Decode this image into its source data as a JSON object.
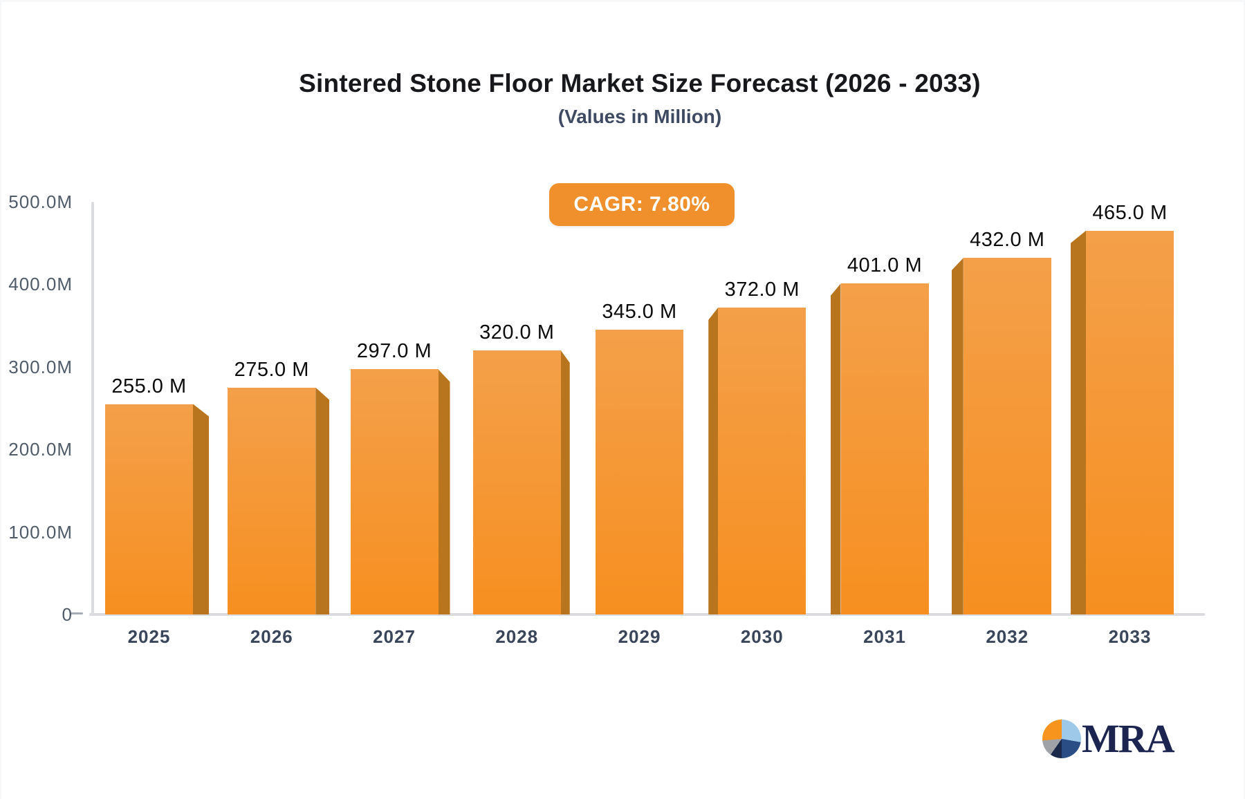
{
  "header": {
    "title": "Sintered Stone Floor Market Size Forecast (2026 - 2033)",
    "subtitle": "(Values in Million)"
  },
  "badge": {
    "label": "CAGR: 7.80%",
    "bg_color": "#f0902c"
  },
  "chart_data": {
    "type": "bar",
    "title": "Sintered Stone Floor Market Size Forecast (2026 - 2033)",
    "subtitle": "(Values in Million)",
    "xlabel": "",
    "ylabel": "",
    "categories": [
      "2025",
      "2026",
      "2027",
      "2028",
      "2029",
      "2030",
      "2031",
      "2032",
      "2033"
    ],
    "values": [
      255,
      275,
      297,
      320,
      345,
      372,
      401,
      432,
      465
    ],
    "value_labels": [
      "255.0 M",
      "275.0 M",
      "297.0 M",
      "320.0 M",
      "345.0 M",
      "372.0 M",
      "401.0 M",
      "432.0 M",
      "465.0 M"
    ],
    "unit": "Million",
    "ylim": [
      0,
      500
    ],
    "yticks": [
      {
        "label": "500.0M",
        "value": 500
      },
      {
        "label": "400.0M",
        "value": 400
      },
      {
        "label": "300.0M",
        "value": 300
      },
      {
        "label": "200.0M",
        "value": 200
      },
      {
        "label": "100.0M",
        "value": 100
      },
      {
        "label": "0",
        "value": 0
      }
    ],
    "grid": false,
    "legend": "none",
    "bar_color_top": "#f4a04a",
    "bar_color_bottom": "#f68f20",
    "bar_side_color": "#b8751e",
    "effect": "3d-perspective-center"
  },
  "logo": {
    "text": "MRA",
    "pie_colors": [
      "#f7941e",
      "#9ec9e8",
      "#2b4d85",
      "#1b2a4a",
      "#9fa3a8"
    ]
  }
}
